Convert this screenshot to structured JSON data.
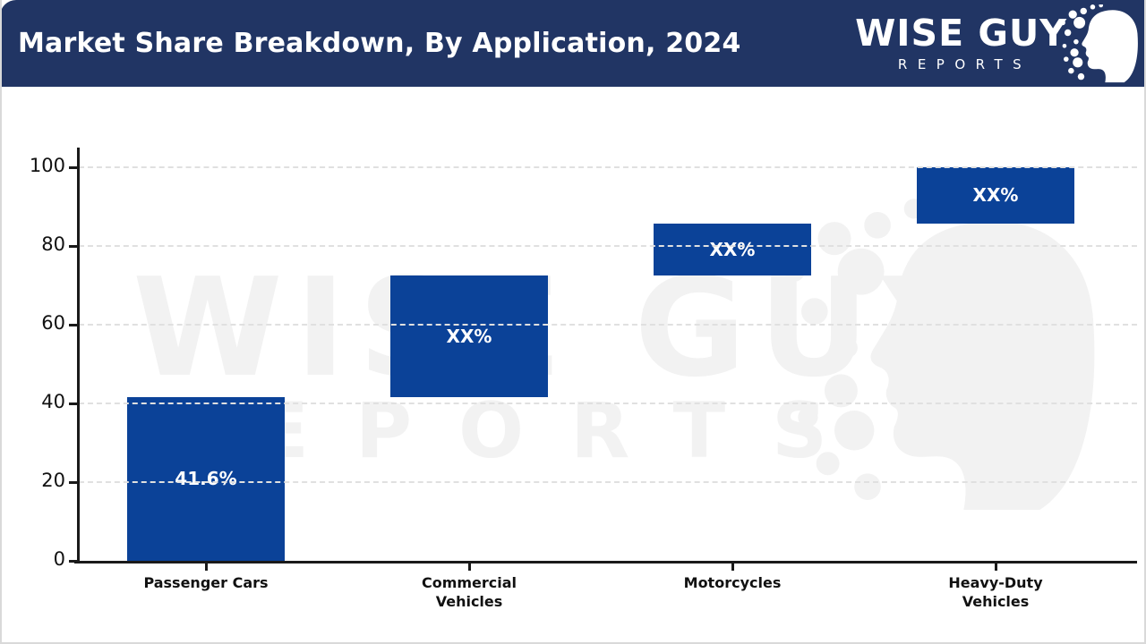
{
  "header": {
    "title": "Market Share Breakdown, By Application, 2024",
    "logo": {
      "line1": "WISE GUY",
      "line2": "REPORTS"
    }
  },
  "watermark": {
    "line1": "WISE GUY",
    "line2": "REPORTS"
  },
  "chart_data": {
    "type": "bar",
    "subtype": "waterfall",
    "title": "Market Share Breakdown, By Application, 2024",
    "categories": [
      "Passenger Cars",
      "Commercial Vehicles",
      "Motorcycles",
      "Heavy-Duty Vehicles"
    ],
    "tick_label_lines": [
      [
        "Passenger Cars"
      ],
      [
        "Commercial",
        "Vehicles"
      ],
      [
        "Motorcycles"
      ],
      [
        "Heavy-Duty",
        "Vehicles"
      ]
    ],
    "segments": [
      {
        "category": "Passenger Cars",
        "start": 0,
        "end": 41.6,
        "value_label": "41.6%"
      },
      {
        "category": "Commercial Vehicles",
        "start": 41.6,
        "end": 72.5,
        "value_label": "XX%"
      },
      {
        "category": "Motorcycles",
        "start": 72.5,
        "end": 85.7,
        "value_label": "XX%"
      },
      {
        "category": "Heavy-Duty Vehicles",
        "start": 85.7,
        "end": 100,
        "value_label": "XX%"
      }
    ],
    "ylim": [
      0,
      100
    ],
    "yticks": [
      0,
      20,
      40,
      60,
      80,
      100
    ],
    "bar_color": "#0b4298",
    "grid": "horizontal-dashed",
    "legend_position": "none"
  },
  "colors": {
    "header_bg": "#213564",
    "bar": "#0b4298",
    "gridline": "#e0e0e0",
    "axis": "#1a1a1a",
    "watermark": "#f2f2f2"
  }
}
